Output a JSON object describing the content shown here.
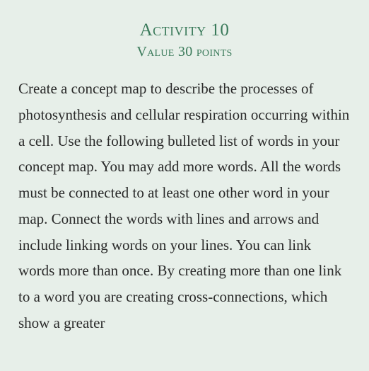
{
  "header": {
    "title": "Activity 10",
    "subtitle": "Value 30 points"
  },
  "body": {
    "paragraph": "Create a concept map to describe the processes of photosynthesis and cellular respiration occurring within a cell. Use the following bulleted list of words in your concept map. You may add more words. All the words must be connected to at least one other word in your map. Connect the words with lines and arrows and include linking words on your lines. You can link words more than once. By creating more than one link to a word you are creating cross-connections, which show a greater"
  },
  "colors": {
    "background": "#e7efe9",
    "heading": "#3a7a5a",
    "body_text": "#2a2a2a"
  },
  "typography": {
    "title_fontsize": 25,
    "subtitle_fontsize": 20,
    "body_fontsize": 21,
    "font_family": "Garamond, Georgia, serif",
    "line_height": 1.75
  }
}
